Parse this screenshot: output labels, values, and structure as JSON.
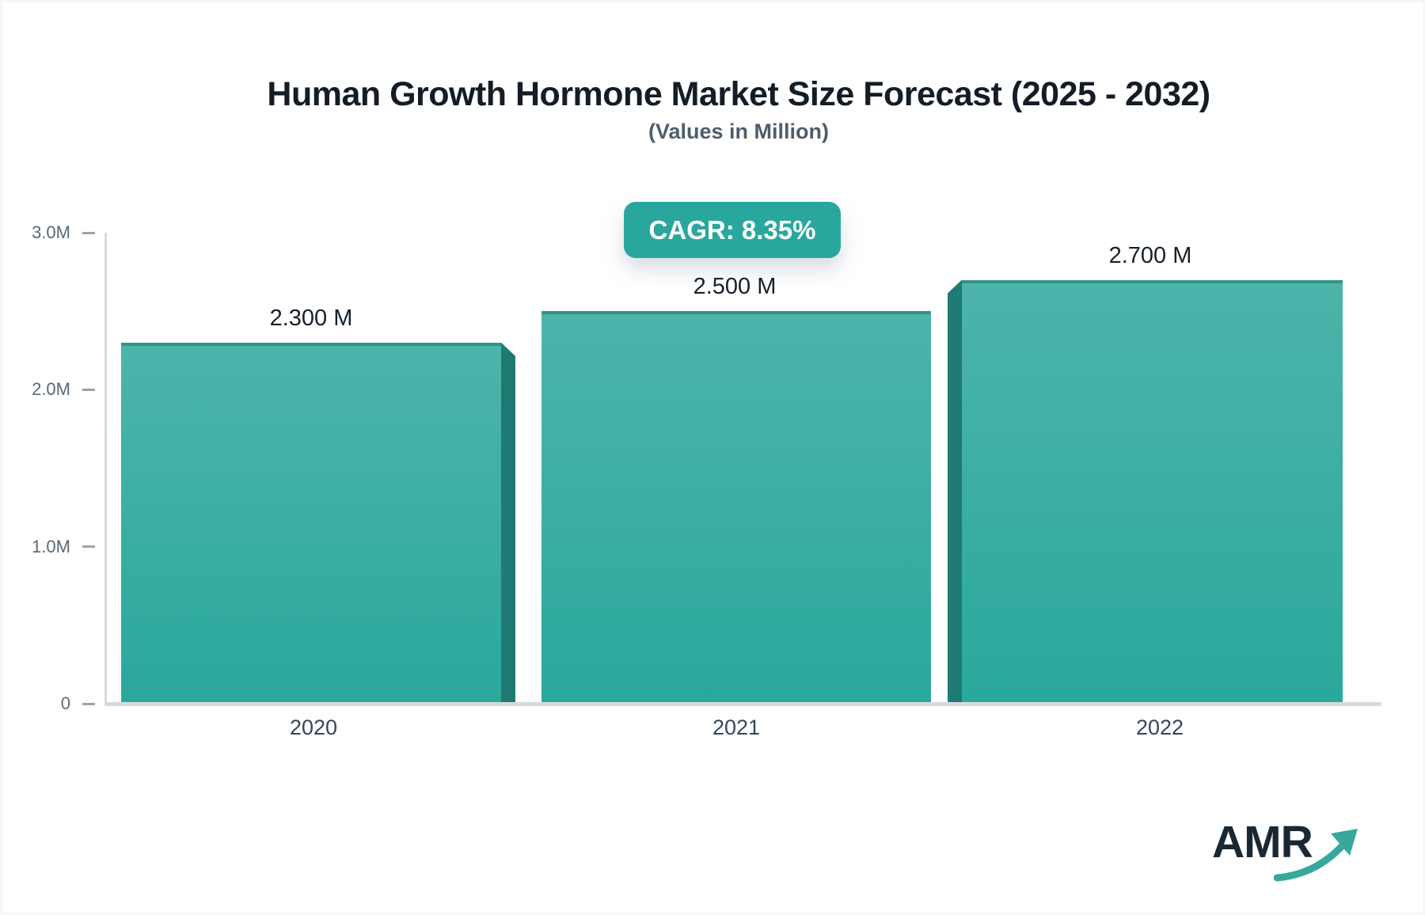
{
  "title": "Human Growth Hormone Market Size Forecast (2025 - 2032)",
  "subtitle": "(Values in Million)",
  "badge": {
    "label": "CAGR: 8.35%",
    "bg": "#2aa79d",
    "text_color": "#ffffff"
  },
  "chart_data": {
    "type": "bar",
    "title": "Human Growth Hormone Market Size Forecast (2025 - 2032)",
    "subtitle": "(Values in Million)",
    "unit": "Million",
    "cagr_pct": 8.35,
    "categories": [
      "2020",
      "2021",
      "2022"
    ],
    "values": [
      2.3,
      2.5,
      2.7
    ],
    "value_labels": [
      "2.300 M",
      "2.500 M",
      "2.700 M"
    ],
    "xlabel": "",
    "ylabel": "",
    "ylim": [
      0,
      3.0
    ],
    "yticks": [
      {
        "value": 0,
        "label": "0"
      },
      {
        "value": 1,
        "label": "1.0M"
      },
      {
        "value": 2,
        "label": "2.0M"
      },
      {
        "value": 3,
        "label": "3.0M"
      }
    ],
    "grid": false,
    "legend": "none",
    "colors": {
      "bar_top": "#4db4aa",
      "bar_bottom": "#2aa89c",
      "bar_top_edge": "#2f968c",
      "bar_side_3d": "#1e7a72",
      "axis_line": "#d7dadd",
      "tick_dash": "#9ba3ab",
      "tick_label": "#5a6877",
      "value_label": "#16202c",
      "category_label": "#36455a"
    }
  },
  "branding": {
    "logo_text": "AMR",
    "logo_color": "#1b2733",
    "arrow_color": "#36a99c"
  }
}
